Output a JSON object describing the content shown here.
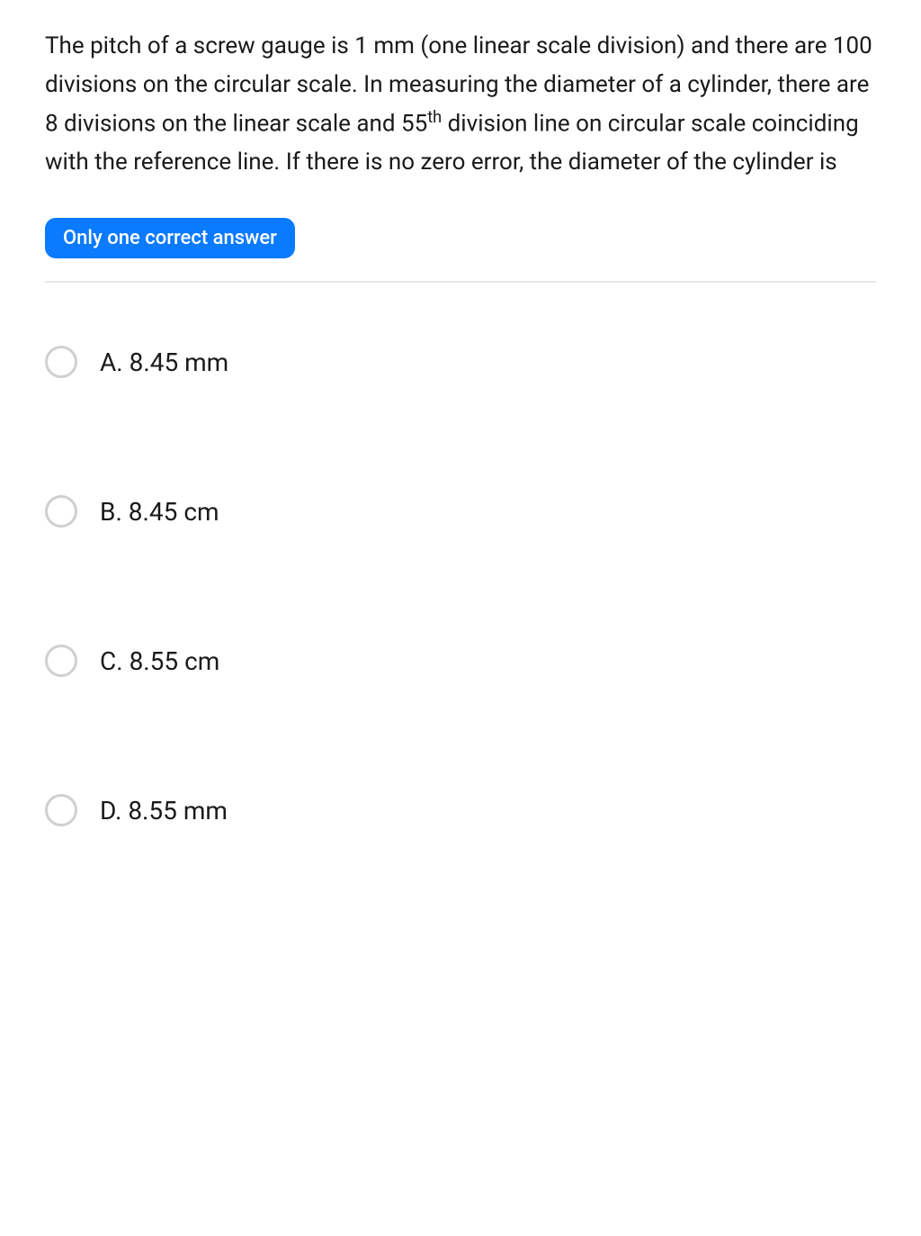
{
  "question": {
    "text_before_sup": "The pitch of a screw gauge is 1 mm (one linear scale division) and there are 100 divisions on the circular scale. In measuring the diameter of a cylinder, there are 8 divisions on the linear scale and 55",
    "sup_text": "th",
    "text_after_sup": " division line on circular scale coinciding with the reference line. If there is no zero error, the diameter of the cylinder is"
  },
  "badge": {
    "label": "Only one correct answer",
    "background_color": "#0a7aff",
    "text_color": "#ffffff"
  },
  "options": [
    {
      "letter": "A",
      "text": "8.45 mm"
    },
    {
      "letter": "B",
      "text": "8.45 cm"
    },
    {
      "letter": "C",
      "text": "8.55 cm"
    },
    {
      "letter": "D",
      "text": "8.55 mm"
    }
  ],
  "styling": {
    "question_fontsize": 26,
    "question_color": "#1a1a1a",
    "option_fontsize": 28,
    "option_color": "#1a1a1a",
    "radio_border_color": "#d0d0d0",
    "divider_color": "#e8e8e8",
    "background_color": "#ffffff"
  }
}
